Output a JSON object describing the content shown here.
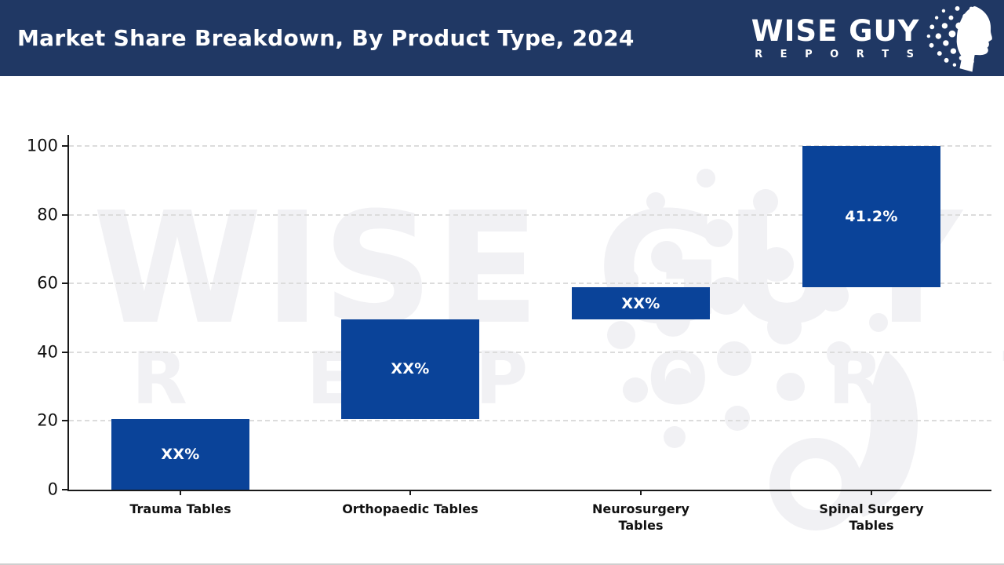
{
  "header": {
    "title": "Market Share Breakdown, By Product Type, 2024",
    "logo": {
      "brand_top": "WISE GUY",
      "brand_bottom": "R E P O R T S"
    }
  },
  "watermark": {
    "line1": "WISE GUY",
    "line2": "R E P O R T S"
  },
  "colors": {
    "header_bg": "#203864",
    "bar": "#0a4399",
    "grid": "#dcdcdc",
    "axis": "#1a1a1a",
    "watermark": "#f1f1f4"
  },
  "chart_data": {
    "type": "bar",
    "subtype": "floating-waterfall",
    "title": "Market Share Breakdown, By Product Type, 2024",
    "categories": [
      "Trauma Tables",
      "Orthopaedic Tables",
      "Neurosurgery\nTables",
      "Spinal Surgery\nTables"
    ],
    "bars": [
      {
        "category": "Trauma Tables",
        "start": 0,
        "end": 20.6,
        "value": 20.6,
        "label": "XX%"
      },
      {
        "category": "Orthopaedic Tables",
        "start": 20.6,
        "end": 49.5,
        "value": 28.9,
        "label": "XX%"
      },
      {
        "category": "Neurosurgery Tables",
        "start": 49.5,
        "end": 58.8,
        "value": 9.3,
        "label": "XX%"
      },
      {
        "category": "Spinal Surgery Tables",
        "start": 58.8,
        "end": 100,
        "value": 41.2,
        "label": "41.2%"
      }
    ],
    "yticks": [
      0,
      20,
      40,
      60,
      80,
      100
    ],
    "ylim": [
      0,
      103
    ],
    "xlabel": "",
    "ylabel": "",
    "grid": "horizontal dashed",
    "legend": "none",
    "bar_color": "#0a4399",
    "value_label_color": "#ffffff"
  }
}
